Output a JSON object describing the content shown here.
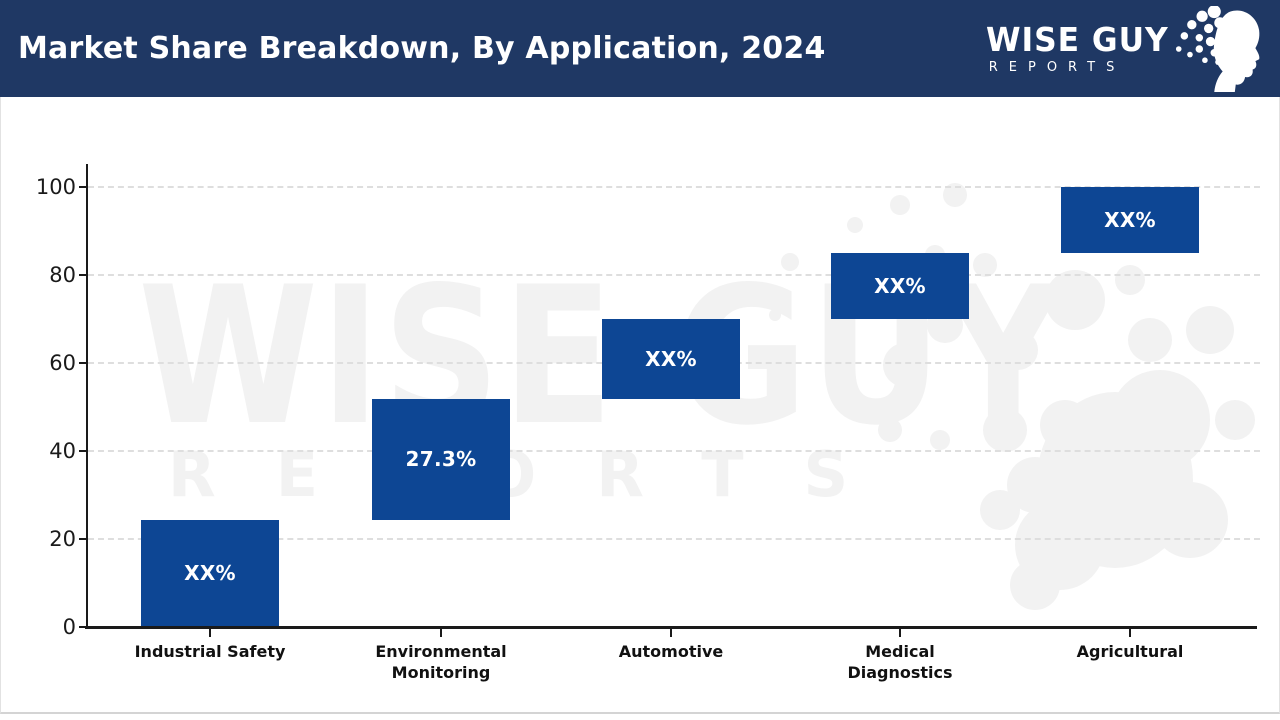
{
  "header": {
    "title": "Market Share Breakdown, By Application, 2024",
    "logo": {
      "brand_line1": "WISE GUY",
      "brand_line2": "REPORTS"
    }
  },
  "watermark": {
    "line1": "WISE GUY",
    "line2": "REPORTS"
  },
  "chart_data": {
    "type": "bar",
    "variant": "waterfall-stacked-share",
    "title": "Market Share Breakdown, By Application, 2024",
    "categories": [
      "Industrial Safety",
      "Environmental Monitoring",
      "Automotive",
      "Medical Diagnostics",
      "Agricultural"
    ],
    "tick_labels": [
      "Industrial Safety",
      "Environmental\nMonitoring",
      "Automotive",
      "Medical\nDiagnostics",
      "Agricultural"
    ],
    "values": [
      24.4,
      27.3,
      18.2,
      15.1,
      15.0
    ],
    "segments": [
      {
        "category": "Industrial Safety",
        "start": 0,
        "end": 24.4,
        "label": "XX%"
      },
      {
        "category": "Environmental Monitoring",
        "start": 24.4,
        "end": 51.7,
        "label": "27.3%"
      },
      {
        "category": "Automotive",
        "start": 51.7,
        "end": 69.9,
        "label": "XX%"
      },
      {
        "category": "Medical Diagnostics",
        "start": 69.9,
        "end": 85.0,
        "label": "XX%"
      },
      {
        "category": "Agricultural",
        "start": 85.0,
        "end": 100.0,
        "label": "XX%"
      }
    ],
    "bar_labels": [
      "XX%",
      "27.3%",
      "XX%",
      "XX%",
      "XX%"
    ],
    "xlabel": "",
    "ylabel": "",
    "yticks": [
      0,
      20,
      40,
      60,
      80,
      100
    ],
    "ylim": [
      0,
      105
    ],
    "grid": "horizontal-dashed",
    "legend": "none",
    "bar_color": "#0d4694",
    "bar_label_color": "#ffffff",
    "header_color": "#1f3864"
  }
}
